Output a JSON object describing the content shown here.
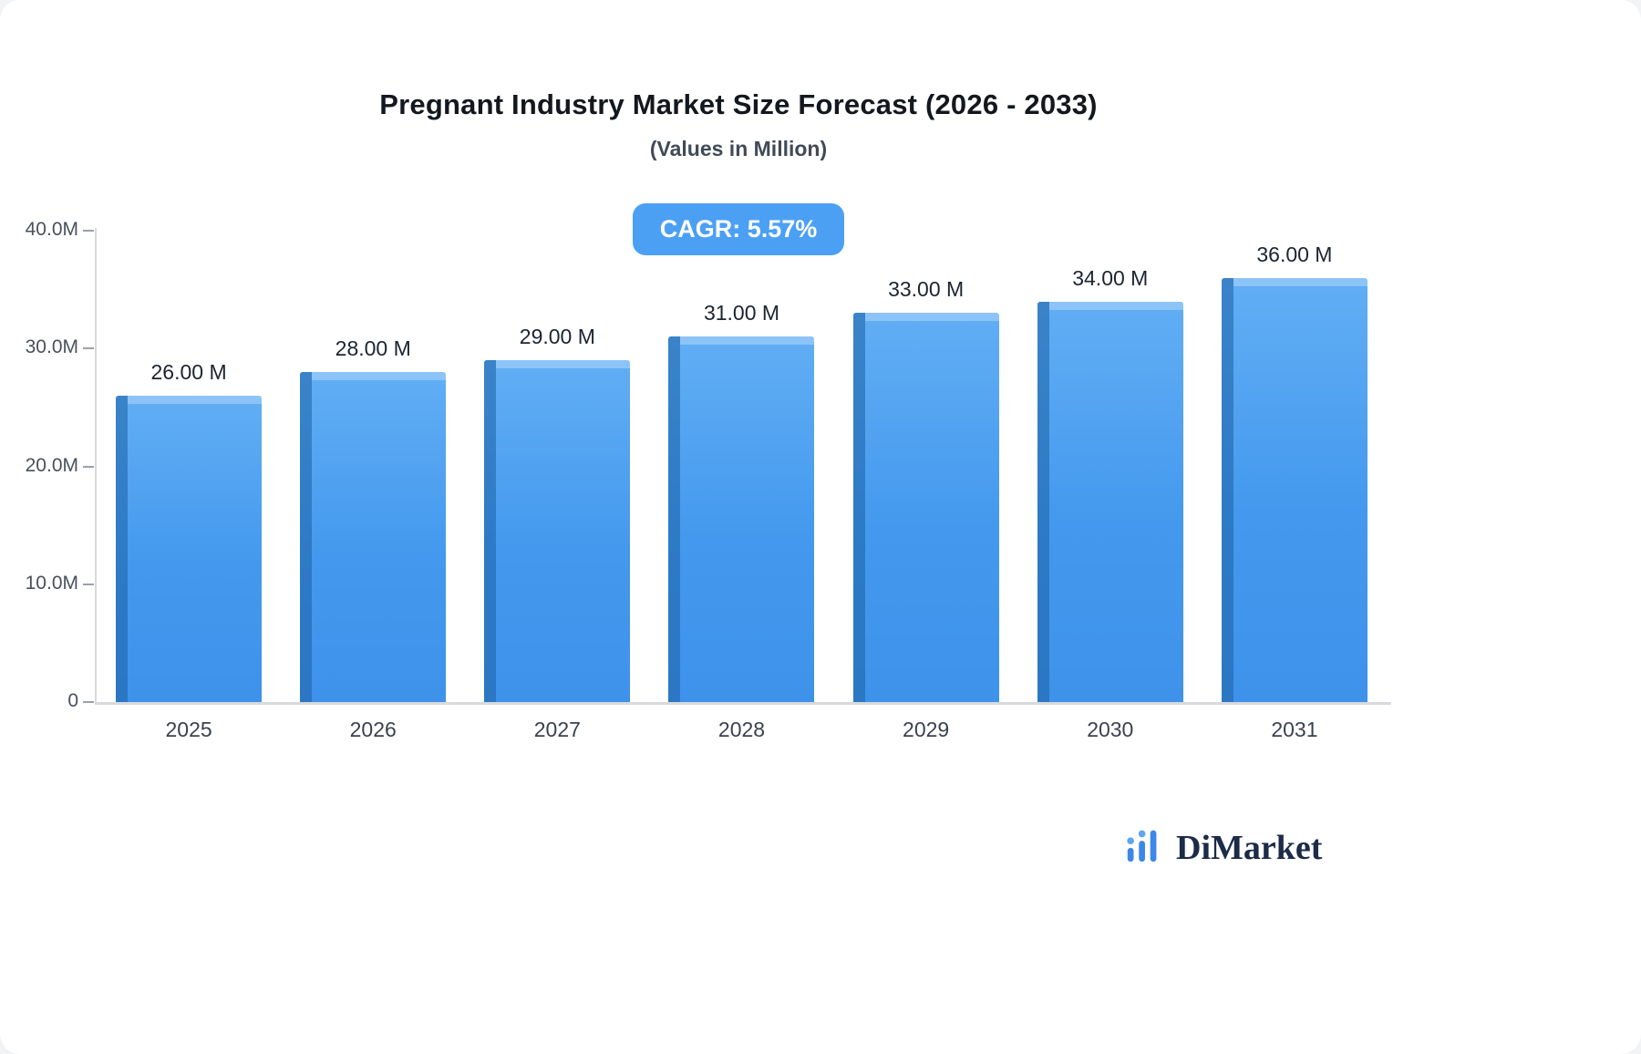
{
  "header": {
    "title": "Pregnant Industry Market Size Forecast (2026 - 2033)",
    "subtitle": "(Values in Million)",
    "cagr_badge": "CAGR: 5.57%"
  },
  "logo": {
    "name": "DiMarket"
  },
  "colors": {
    "bar_main": "#4499EE",
    "bar_side_shadow": "#2B6FB8",
    "badge_bg": "#4BA0F4",
    "axis": "#d8dadd",
    "title_text": "#13181f",
    "logo_text": "#1c2b47",
    "logo_icon_blue": "#3D87E8"
  },
  "chart_data": {
    "type": "bar",
    "categories": [
      "2025",
      "2026",
      "2027",
      "2028",
      "2029",
      "2030",
      "2031"
    ],
    "values": [
      26,
      28,
      29,
      31,
      33,
      34,
      36
    ],
    "value_labels": [
      "26.00 M",
      "28.00 M",
      "29.00 M",
      "31.00 M",
      "33.00 M",
      "34.00 M",
      "36.00 M"
    ],
    "y_ticks": [
      "40.0M",
      "30.0M",
      "20.0M",
      "10.0M",
      "0"
    ],
    "ylim": [
      0,
      40
    ],
    "title": "Pregnant Industry Market Size Forecast (2026 - 2033)",
    "subtitle": "(Values in Million)",
    "xlabel": "",
    "ylabel": "",
    "grid": false,
    "legend": false,
    "units": "Million"
  }
}
